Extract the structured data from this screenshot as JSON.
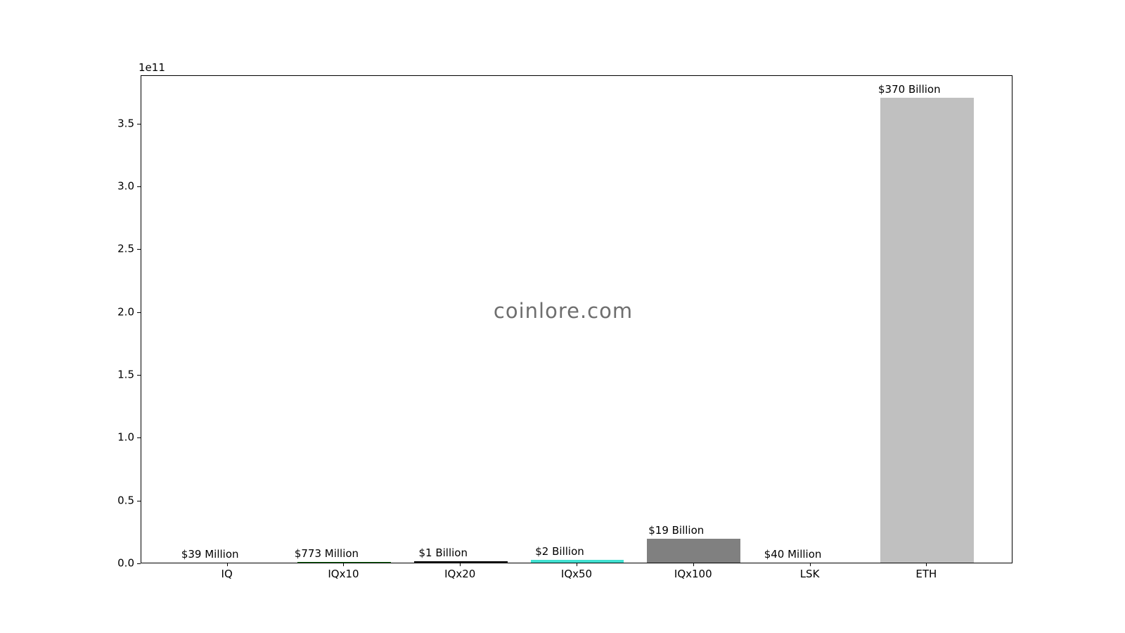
{
  "chart_data": {
    "type": "bar",
    "title": "",
    "categories": [
      "IQ",
      "IQx10",
      "IQx20",
      "IQx50",
      "IQx100",
      "LSK",
      "ETH"
    ],
    "values": [
      39000000,
      773000000,
      1000000000,
      2000000000,
      19000000000,
      40000000,
      370000000000
    ],
    "value_labels": [
      "$39 Million",
      "$773 Million",
      "$1 Billion",
      "$2 Billion",
      "$19 Billion",
      "$40 Million",
      "$370 Billion"
    ],
    "bar_colors": [
      "",
      "#006400",
      "#000000",
      "#40e0d0",
      "#808080",
      "",
      "#c0c0c0"
    ],
    "xlabel": "",
    "ylabel": "",
    "ylim": [
      0,
      388500000000
    ],
    "yticks": {
      "offset_label": "1e11",
      "values": [
        0,
        50000000000,
        100000000000,
        150000000000,
        200000000000,
        250000000000,
        300000000000,
        350000000000
      ],
      "labels": [
        "0.0",
        "0.5",
        "1.0",
        "1.5",
        "2.0",
        "2.5",
        "3.0",
        "3.5"
      ]
    },
    "grid": false,
    "legend_position": "none",
    "watermark": "coinlore.com"
  },
  "colors": {
    "background": "#ffffff",
    "spine": "#000000",
    "tick_label": "#000000",
    "bar_value_label": "#000000",
    "watermark": "#6e6e6e"
  }
}
